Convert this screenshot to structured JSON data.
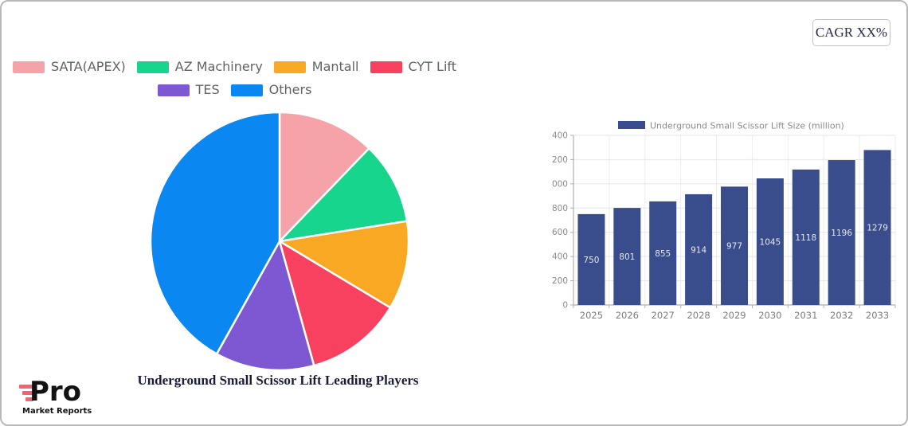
{
  "cagr_box": {
    "label": "CAGR XX%"
  },
  "logo": {
    "name": "Pro",
    "tagline": "Market Reports"
  },
  "colors": {
    "bar_navy": "#394d8c",
    "card_border": "#b9b9b9",
    "axis_line": "#b0b0b0",
    "gridline": "#e6e6e6",
    "axis_label_gray": "#8a8a8a",
    "legend_text_gray": "#5f6368",
    "logo_red": "#f4646e"
  },
  "chart_data": [
    {
      "type": "pie",
      "title": "Underground Small Scissor Lift Leading Players",
      "legend_position": "top",
      "labels": [
        "SATA(APEX)",
        "AZ Machinery",
        "Mantall",
        "CYT Lift",
        "TES",
        "Others"
      ],
      "values": [
        12.2,
        10.3,
        11.1,
        12.1,
        12.4,
        41.9
      ],
      "colors": [
        "#f5a3a8",
        "#17d58c",
        "#f8a822",
        "#f8415f",
        "#7e58d3",
        "#0b87f2"
      ],
      "legend_rows": [
        [
          0,
          1,
          2,
          3
        ],
        [
          4,
          5
        ]
      ],
      "start_angle_deg": 0,
      "direction": "clockwise"
    },
    {
      "type": "bar",
      "legend_label": "Underground Small Scissor Lift Size (million)",
      "categories": [
        "2025",
        "2026",
        "2027",
        "2028",
        "2029",
        "2030",
        "2031",
        "2032",
        "2033"
      ],
      "values": [
        750,
        801,
        855,
        914,
        977,
        1045,
        1118,
        1196,
        1279
      ],
      "bar_color": "#394d8c",
      "value_label_color": "#e6e6ec",
      "ylim": [
        0,
        1400
      ],
      "ytick_step": 200,
      "grid": true,
      "legend_position": "top"
    }
  ]
}
